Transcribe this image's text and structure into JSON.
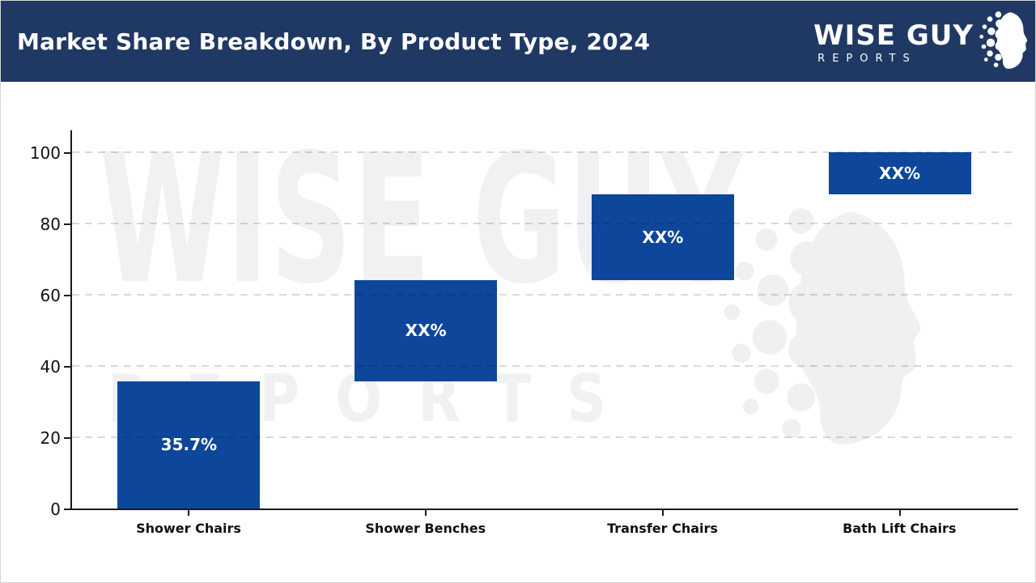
{
  "header": {
    "title": "Market Share Breakdown, By Product Type, 2024",
    "brand_line1": "WISE GUY",
    "brand_line2": "REPORTS",
    "bg_color": "#203864"
  },
  "watermark": {
    "line1": "WISE GUY",
    "line2": "REPORTS"
  },
  "chart_data": {
    "type": "bar",
    "variant": "floating-waterfall",
    "title": "Market Share Breakdown, By Product Type, 2024",
    "categories": [
      "Shower Chairs",
      "Shower Benches",
      "Transfer Chairs",
      "Bath Lift Chairs"
    ],
    "bars": [
      {
        "category": "Shower Chairs",
        "start": 0,
        "end": 35.7,
        "label": "35.7%"
      },
      {
        "category": "Shower Benches",
        "start": 35.7,
        "end": 64.1,
        "label": "XX%"
      },
      {
        "category": "Transfer Chairs",
        "start": 64.1,
        "end": 88.2,
        "label": "XX%"
      },
      {
        "category": "Bath Lift Chairs",
        "start": 88.2,
        "end": 100,
        "label": "XX%"
      }
    ],
    "xlabel": "",
    "ylabel": "",
    "ylim": [
      0,
      100
    ],
    "yticks": [
      0,
      20,
      40,
      60,
      80,
      100
    ],
    "grid": {
      "horizontal": true,
      "style": "dashed"
    },
    "legend": "none",
    "bar_color": "#0D469B",
    "bar_label_color": "#ffffff",
    "axis_color": "#1a1a1a",
    "gridline_color": "rgba(0,0,0,0.15)"
  }
}
